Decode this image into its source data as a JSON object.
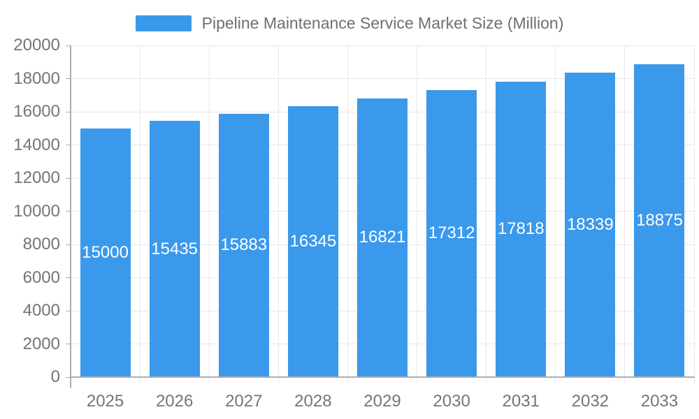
{
  "chart_data": {
    "type": "bar",
    "title": "Pipeline Maintenance Service Market Size (Million)",
    "categories": [
      "2025",
      "2026",
      "2027",
      "2028",
      "2029",
      "2030",
      "2031",
      "2032",
      "2033"
    ],
    "values": [
      15000,
      15435,
      15883,
      16345,
      16821,
      17312,
      17818,
      18339,
      18875
    ],
    "xlabel": "",
    "ylabel": "",
    "ylim": [
      0,
      20000
    ],
    "ytick_step": 2000,
    "yticks": [
      0,
      2000,
      4000,
      6000,
      8000,
      10000,
      12000,
      14000,
      16000,
      18000,
      20000
    ],
    "grid": true,
    "legend_position": "top",
    "value_labels": "inside-center",
    "colors": {
      "bar": "#3B99EC",
      "value_label": "#FFFFFF",
      "axis_text": "#757575",
      "title_text": "#6F6F6F",
      "grid_line": "#E8E8E8",
      "axis_line": "#AEAEAE",
      "background": "#FFFFFF"
    }
  }
}
